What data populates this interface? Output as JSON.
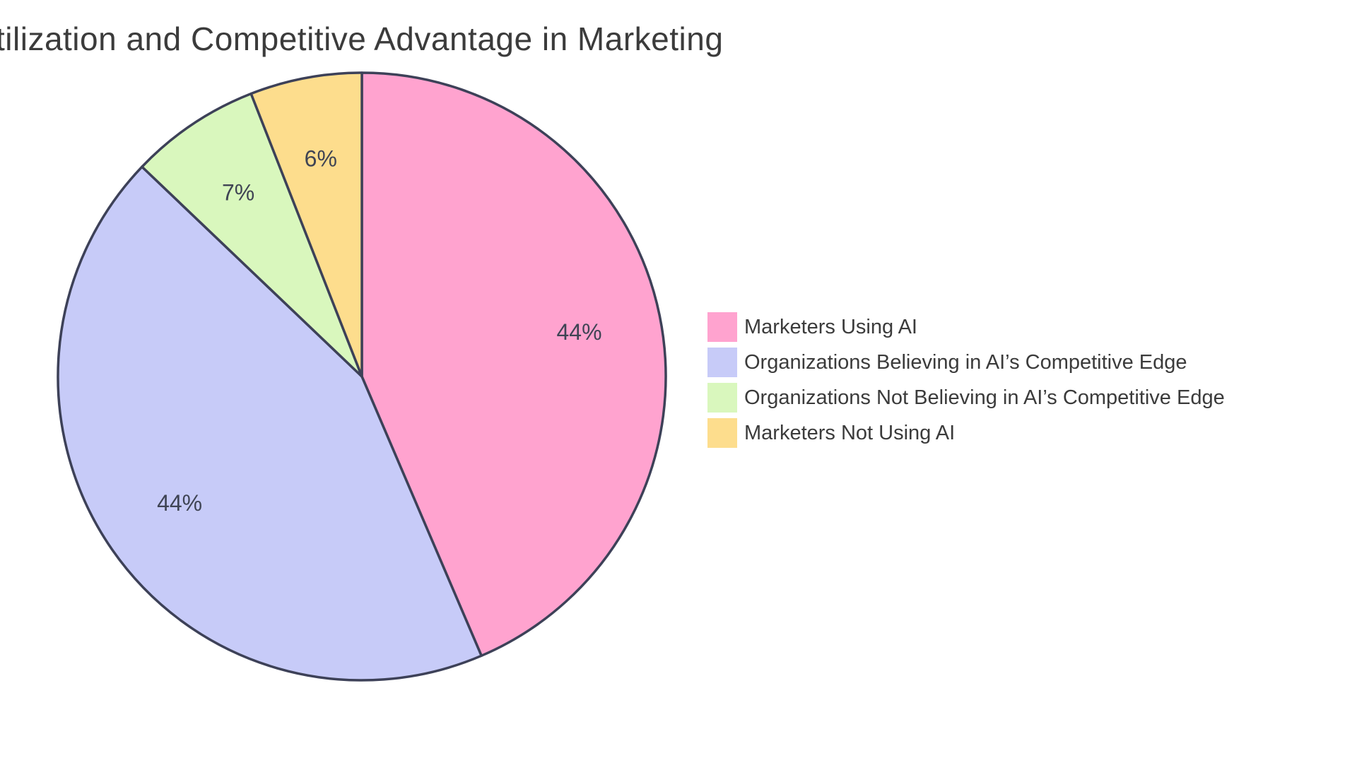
{
  "page": {
    "background": "#ffffff"
  },
  "chart_data": {
    "type": "pie",
    "title": "tilization and Competitive Advantage in Marketing",
    "title_color": "#3b3b3b",
    "direction": "clockwise",
    "start_angle": "12-oclock",
    "stroke_color": "#3d4158",
    "label_color": "#3f4454",
    "legend_position": "right-middle",
    "legend_text_color": "#3b3b3b",
    "slices": [
      {
        "label": "Marketers Using AI",
        "value": 44,
        "display": "44%",
        "color": "#ffa3cf"
      },
      {
        "label": "Organizations Believing in AI’s Competitive Edge",
        "value": 44,
        "display": "44%",
        "color": "#c7cbf8"
      },
      {
        "label": "Organizations Not Believing in AI’s Competitive Edge",
        "value": 7,
        "display": "7%",
        "color": "#d9f7bd"
      },
      {
        "label": "Marketers Not Using AI",
        "value": 6,
        "display": "6%",
        "color": "#fddd8d"
      }
    ]
  }
}
